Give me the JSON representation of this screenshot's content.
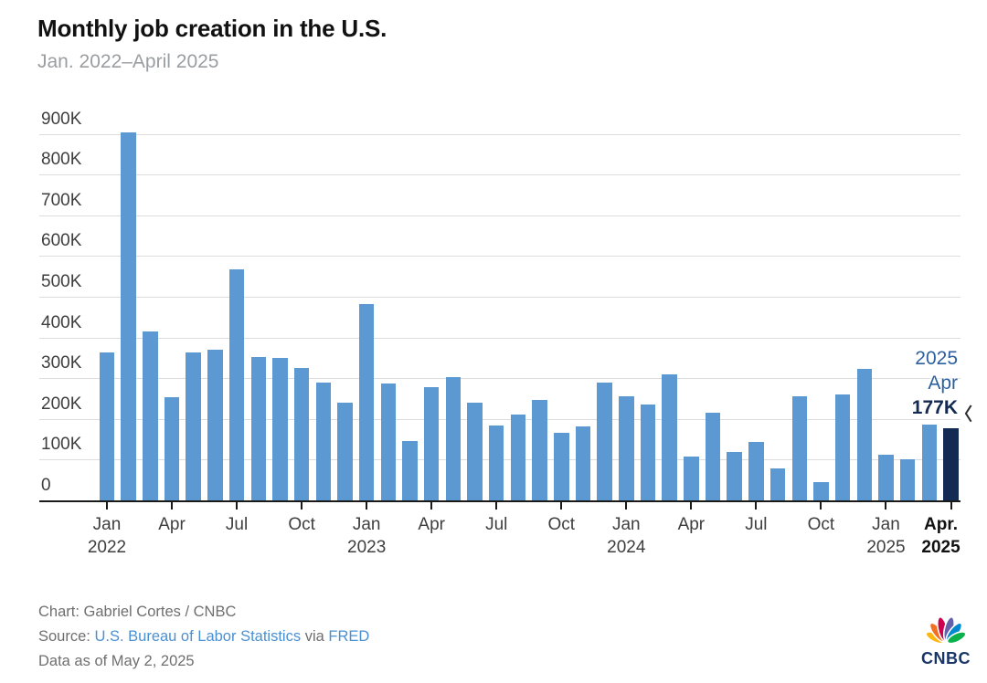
{
  "header": {
    "title": "Monthly job creation in the U.S.",
    "subtitle": "Jan. 2022–April 2025"
  },
  "chart_data": {
    "type": "bar",
    "title": "Monthly job creation in the U.S.",
    "subtitle": "Jan. 2022–April 2025",
    "unit": "thousands of jobs",
    "months": [
      "Jan 2022",
      "Feb 2022",
      "Mar 2022",
      "Apr 2022",
      "May 2022",
      "Jun 2022",
      "Jul 2022",
      "Aug 2022",
      "Sep 2022",
      "Oct 2022",
      "Nov 2022",
      "Dec 2022",
      "Jan 2023",
      "Feb 2023",
      "Mar 2023",
      "Apr 2023",
      "May 2023",
      "Jun 2023",
      "Jul 2023",
      "Aug 2023",
      "Sep 2023",
      "Oct 2023",
      "Nov 2023",
      "Dec 2023",
      "Jan 2024",
      "Feb 2024",
      "Mar 2024",
      "Apr 2024",
      "May 2024",
      "Jun 2024",
      "Jul 2024",
      "Aug 2024",
      "Sep 2024",
      "Oct 2024",
      "Nov 2024",
      "Dec 2024",
      "Jan 2025",
      "Feb 2025",
      "Mar 2025",
      "Apr 2025"
    ],
    "values": [
      364,
      904,
      414,
      254,
      364,
      370,
      568,
      352,
      350,
      324,
      290,
      239,
      482,
      287,
      146,
      278,
      303,
      240,
      184,
      210,
      246,
      165,
      182,
      290,
      256,
      236,
      310,
      108,
      216,
      118,
      144,
      78,
      255,
      44,
      261,
      323,
      111,
      102,
      185,
      177
    ],
    "ylim": [
      0,
      900
    ],
    "yticks": [
      0,
      100,
      200,
      300,
      400,
      500,
      600,
      700,
      800,
      900
    ],
    "ytick_labels": [
      "0",
      "100K",
      "200K",
      "300K",
      "400K",
      "500K",
      "600K",
      "700K",
      "800K",
      "900K"
    ],
    "xticks": [
      {
        "i": 0,
        "month": "Jan",
        "year": "2022",
        "bold": false
      },
      {
        "i": 3,
        "month": "Apr",
        "year": "",
        "bold": false
      },
      {
        "i": 6,
        "month": "Jul",
        "year": "",
        "bold": false
      },
      {
        "i": 9,
        "month": "Oct",
        "year": "",
        "bold": false
      },
      {
        "i": 12,
        "month": "Jan",
        "year": "2023",
        "bold": false
      },
      {
        "i": 15,
        "month": "Apr",
        "year": "",
        "bold": false
      },
      {
        "i": 18,
        "month": "Jul",
        "year": "",
        "bold": false
      },
      {
        "i": 21,
        "month": "Oct",
        "year": "",
        "bold": false
      },
      {
        "i": 24,
        "month": "Jan",
        "year": "2024",
        "bold": false
      },
      {
        "i": 27,
        "month": "Apr",
        "year": "",
        "bold": false
      },
      {
        "i": 30,
        "month": "Jul",
        "year": "",
        "bold": false
      },
      {
        "i": 33,
        "month": "Oct",
        "year": "",
        "bold": false
      },
      {
        "i": 36,
        "month": "Jan",
        "year": "2025",
        "bold": false
      },
      {
        "i": 39,
        "month": "Apr.",
        "year": "2025",
        "bold": true
      }
    ],
    "grid": true,
    "legend": false,
    "bar_color": "#5C99D3",
    "highlight_color": "#132A52",
    "highlight_index": 39,
    "annotation": {
      "year": "2025",
      "month": "Apr",
      "value_label": "177K",
      "pointer": "〈"
    }
  },
  "footer": {
    "credit": "Chart: Gabriel Cortes / CNBC",
    "source_prefix": "Source:",
    "source_link1": "U.S. Bureau of Labor Statistics",
    "source_mid": "via",
    "source_link2": "FRED",
    "data_as_of": "Data as of May 2, 2025",
    "logo_text": "CNBC"
  },
  "colors": {
    "title": "#111111",
    "subtitle": "#9b9ea1",
    "axis_label": "#3e3e3e",
    "gridline": "#dcdcdc",
    "axis_line": "#1a1a1a",
    "bar": "#5C99D3",
    "highlight_bar": "#132A52",
    "annotation_blue": "#2E609F",
    "annotation_navy": "#132A52",
    "footer_text": "#6f6f6f",
    "link": "#4A90D2",
    "logo_navy": "#1A3668"
  }
}
